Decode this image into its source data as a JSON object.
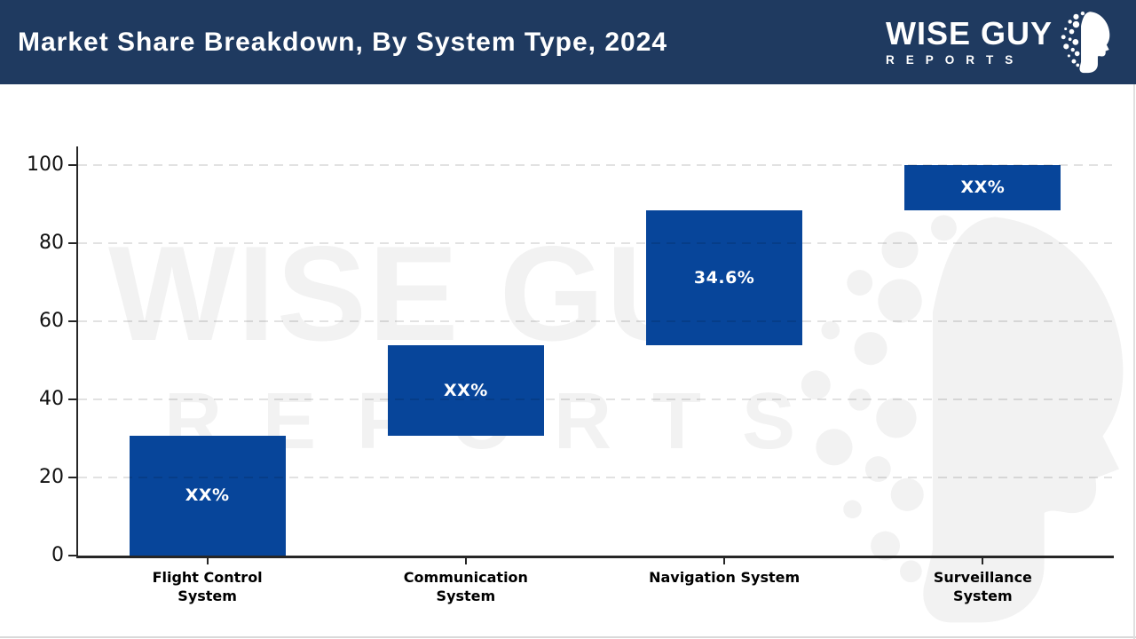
{
  "header": {
    "title": "Market Share Breakdown, By System Type, 2024",
    "brand_name": "WISE GUY",
    "brand_sub": "REPORTS",
    "bg_color": "#1F3A60"
  },
  "watermark": {
    "line1": "WISE GUY",
    "line2": "REPORTS"
  },
  "chart_data": {
    "type": "bar",
    "subtype": "waterfall (floating cumulative segment bars)",
    "title": "Market Share Breakdown, By System Type, 2024",
    "categories": [
      "Flight Control System",
      "Communication System",
      "Navigation System",
      "Surveillance System"
    ],
    "series": [
      {
        "name": "Market share (%)",
        "base": [
          0,
          30.7,
          53.9,
          88.5
        ],
        "values": [
          30.7,
          23.2,
          34.6,
          11.5
        ]
      }
    ],
    "bar_labels": [
      "XX%",
      "XX%",
      "34.6%",
      "XX%"
    ],
    "xlabel": "",
    "ylabel": "",
    "ylim": [
      0,
      100
    ],
    "yticks": [
      0,
      20,
      40,
      60,
      80,
      100
    ],
    "grid": "horizontal dashed gridlines drawn over bars",
    "legend": "none",
    "bar_color": "#07459A",
    "bar_label_color": "#FFFFFF",
    "axis_color": "#262626"
  }
}
